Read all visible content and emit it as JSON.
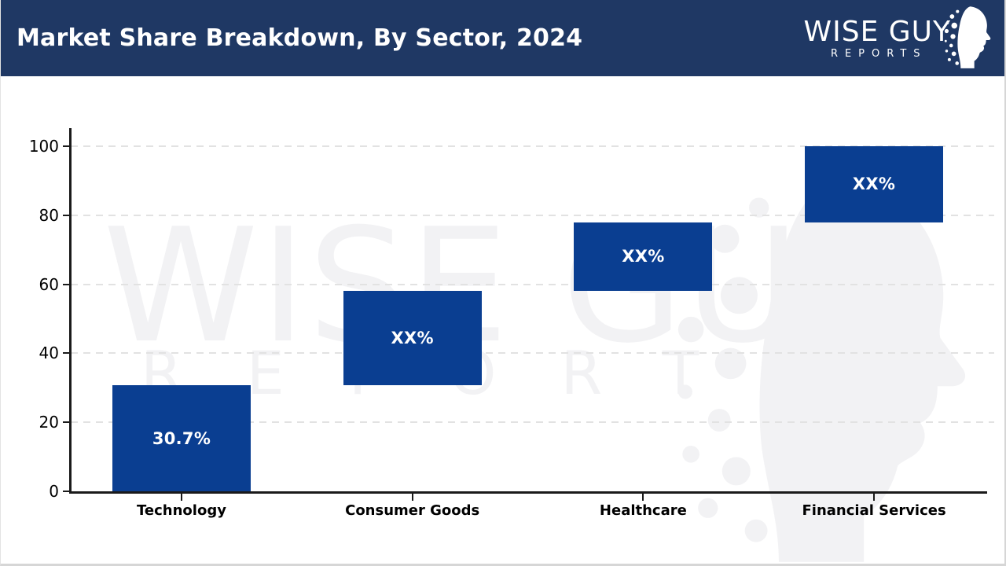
{
  "header": {
    "title": "Market Share Breakdown, By Sector, 2024",
    "brand_name": "WISE GUY",
    "brand_subtitle": "REPORTS",
    "bg_color": "#1f3864"
  },
  "watermark": {
    "text_primary": "WISE GUY",
    "text_secondary": "REPORTS"
  },
  "chart_data": {
    "type": "bar",
    "variant": "waterfall",
    "title": "Market Share Breakdown, By Sector, 2024",
    "categories": [
      "Technology",
      "Consumer Goods",
      "Healthcare",
      "Financial Services"
    ],
    "segments": [
      {
        "category": "Technology",
        "start": 0,
        "end": 30.7,
        "label": "30.7%"
      },
      {
        "category": "Consumer Goods",
        "start": 30.7,
        "end": 58,
        "label": "XX%"
      },
      {
        "category": "Healthcare",
        "start": 58,
        "end": 78,
        "label": "XX%"
      },
      {
        "category": "Financial Services",
        "start": 78,
        "end": 100,
        "label": "XX%"
      }
    ],
    "yticks": [
      0,
      20,
      40,
      60,
      80,
      100
    ],
    "ylim": [
      0,
      105
    ],
    "xlabel": "",
    "ylabel": "",
    "bar_color": "#0a3e91",
    "label_color": "#ffffff",
    "grid": "horizontal-dashed",
    "legend": "none"
  }
}
